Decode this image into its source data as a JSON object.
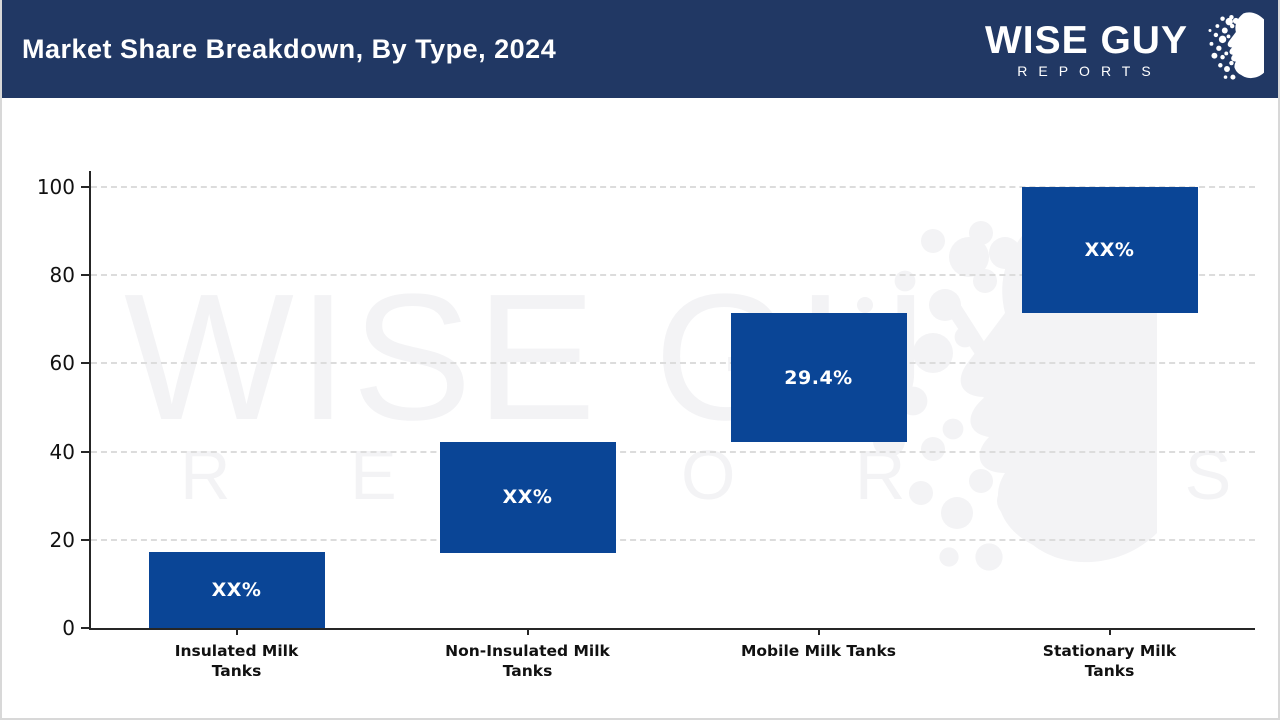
{
  "header": {
    "title": "Market Share Breakdown, By Type, 2024",
    "logo": {
      "line1": "WISE GUY",
      "line2": "REPORTS"
    }
  },
  "watermark": {
    "line1": "WISE GUY",
    "line2": "R E P O R T S"
  },
  "colors": {
    "header_bg": "#213864",
    "bar": "#0a4596",
    "grid": "#dcdcdc",
    "axis": "#262626",
    "tick_text": "#111111",
    "bar_label_text": "#ffffff",
    "watermark": "#f3f3f5"
  },
  "chart_data": {
    "type": "bar",
    "subtype": "floating-waterfall",
    "title": "Market Share Breakdown, By Type, 2024",
    "categories": [
      "Insulated Milk Tanks",
      "Non-Insulated Milk Tanks",
      "Mobile Milk Tanks",
      "Stationary Milk Tanks"
    ],
    "category_lines": [
      [
        "Insulated Milk",
        "Tanks"
      ],
      [
        "Non-Insulated Milk",
        "Tanks"
      ],
      [
        "Mobile Milk Tanks"
      ],
      [
        "Stationary Milk",
        "Tanks"
      ]
    ],
    "bars": [
      {
        "start": 0,
        "end": 17.2,
        "label": "XX%"
      },
      {
        "start": 17.0,
        "end": 42.2,
        "label": "XX%"
      },
      {
        "start": 42.1,
        "end": 71.5,
        "label": "29.4%"
      },
      {
        "start": 71.4,
        "end": 100,
        "label": "XX%"
      }
    ],
    "ylim": [
      0,
      100
    ],
    "yticks": [
      0,
      20,
      40,
      60,
      80,
      100
    ],
    "xlabel": "",
    "ylabel": "",
    "grid": "horizontal-dashed",
    "legend": "none"
  }
}
